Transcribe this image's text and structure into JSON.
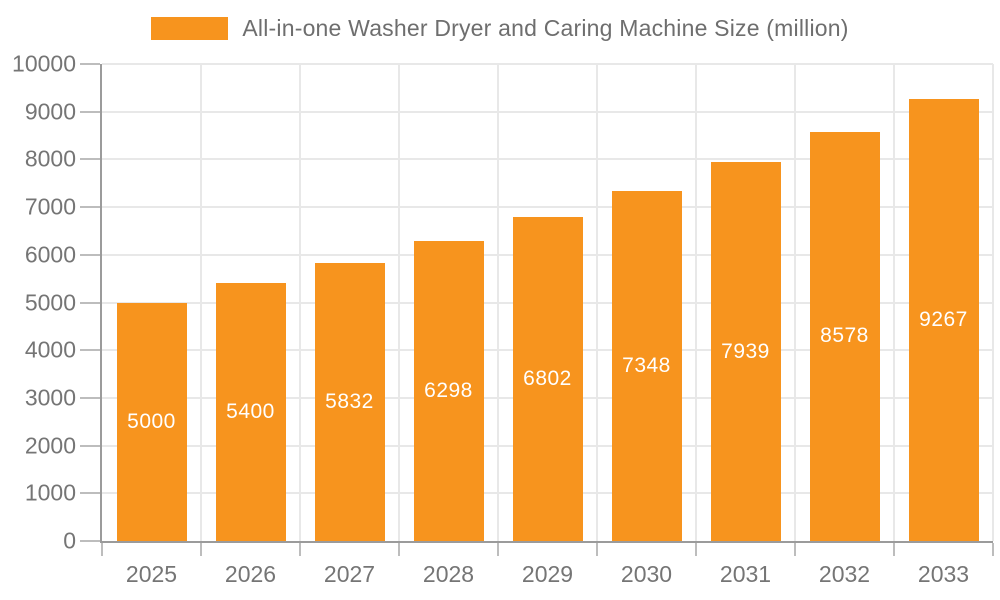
{
  "legend": {
    "label": "All-in-one Washer Dryer and Caring Machine Size (million)"
  },
  "chart_data": {
    "type": "bar",
    "title": "All-in-one Washer Dryer and Caring Machine Size (million)",
    "categories": [
      "2025",
      "2026",
      "2027",
      "2028",
      "2029",
      "2030",
      "2031",
      "2032",
      "2033"
    ],
    "values": [
      5000,
      5400,
      5832,
      6298,
      6802,
      7348,
      7939,
      8578,
      9267
    ],
    "series": [
      {
        "name": "All-in-one Washer Dryer and Caring Machine Size (million)",
        "values": [
          5000,
          5400,
          5832,
          6298,
          6802,
          7348,
          7939,
          8578,
          9267
        ]
      }
    ],
    "xlabel": "",
    "ylabel": "",
    "ylim": [
      0,
      10000
    ],
    "y_ticks": [
      0,
      1000,
      2000,
      3000,
      4000,
      5000,
      6000,
      7000,
      8000,
      9000,
      10000
    ],
    "grid": true,
    "legend_position": "top",
    "bar_color": "#F7941E",
    "value_label_color": "#ffffff",
    "axis_text_color": "#757575"
  }
}
